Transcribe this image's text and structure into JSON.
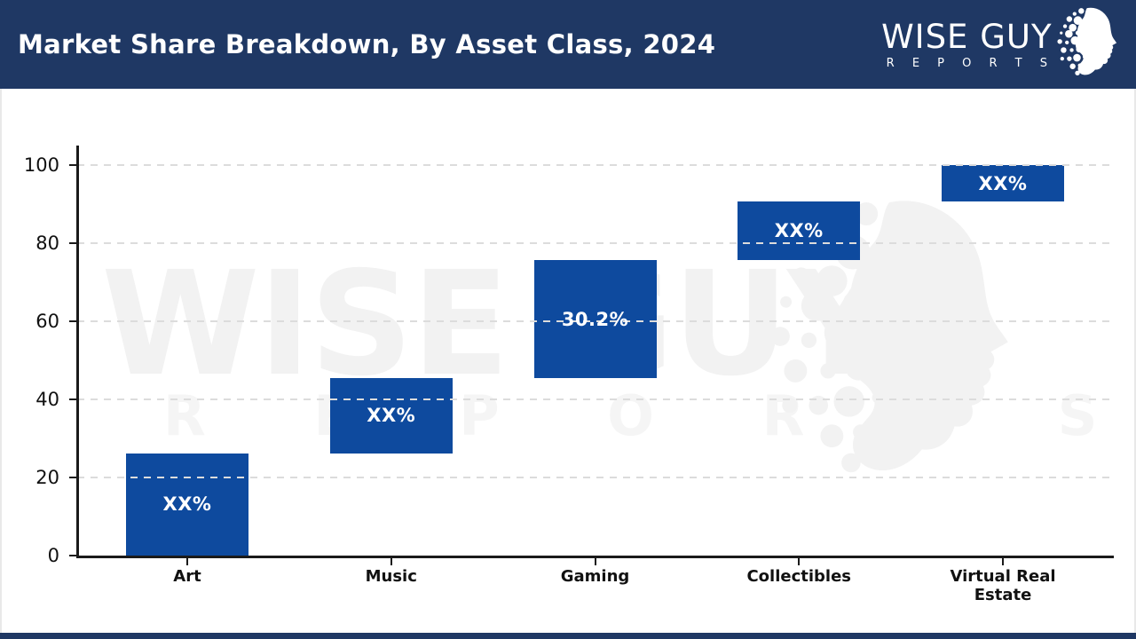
{
  "header": {
    "title": "Market Share Breakdown, By Asset Class, 2024",
    "logo": {
      "line1": "WISE GUY",
      "line2": "R E P O R T S"
    }
  },
  "watermark": {
    "line1": "WISE GUY",
    "line2": "R E P O R T S"
  },
  "colors": {
    "header_bg": "#1F3864",
    "bar": "#0E4A9E",
    "bar_label": "#FFFFFF",
    "grid": "#DCDCDC",
    "axis": "#1A1A1A",
    "watermark": "#F2F2F2"
  },
  "chart_data": {
    "type": "bar",
    "subtype": "floating-waterfall",
    "title": "Market Share Breakdown, By Asset Class, 2024",
    "categories": [
      "Art",
      "Music",
      "Gaming",
      "Collectibles",
      "Virtual Real Estate"
    ],
    "segments": [
      {
        "category": "Art",
        "start": 0,
        "end": 26.2,
        "label": "XX%"
      },
      {
        "category": "Music",
        "start": 26.2,
        "end": 45.4,
        "label": "XX%"
      },
      {
        "category": "Gaming",
        "start": 45.4,
        "end": 75.6,
        "label": "30.2%"
      },
      {
        "category": "Collectibles",
        "start": 75.6,
        "end": 90.6,
        "label": "XX%"
      },
      {
        "category": "Virtual Real Estate",
        "start": 90.6,
        "end": 100,
        "label": "XX%"
      }
    ],
    "xlabel": "",
    "ylabel": "",
    "ylim": [
      0,
      100
    ],
    "yticks": [
      0,
      20,
      40,
      60,
      80,
      100
    ],
    "grid": "horizontal-dashed",
    "legend": "none"
  }
}
